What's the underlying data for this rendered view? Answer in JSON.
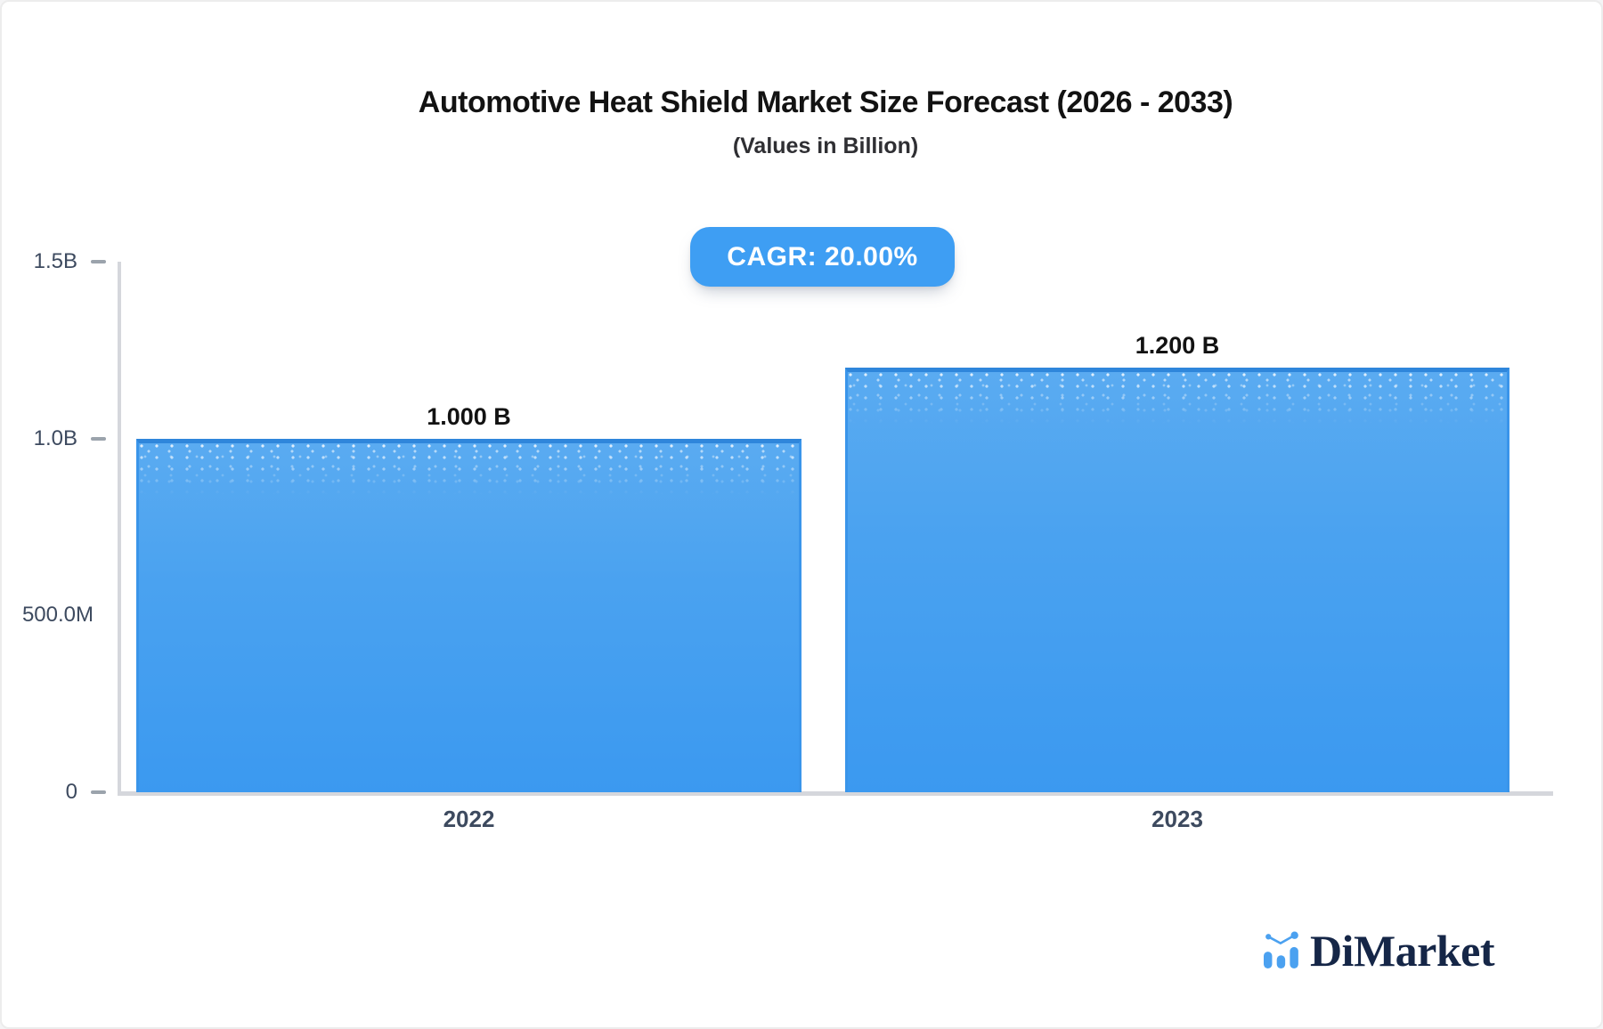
{
  "title": "Automotive Heat Shield Market Size Forecast (2026 - 2033)",
  "subtitle": "(Values in Billion)",
  "cagr_badge": "CAGR: 20.00%",
  "brand": {
    "name": "DiMarket",
    "icon": "bar-chart-logo-icon",
    "navy": "#152647",
    "blue": "#4ba1f0"
  },
  "colors": {
    "badge_blue": "#3e9ef3",
    "bar_top": "#5aabf1",
    "bar_bottom": "#3b99f0",
    "bar_border": "#2f86db",
    "axis_gray": "#d5d7dc",
    "tick_dash_gray": "#9ba3ac",
    "tick_text": "#3d4a5f",
    "label_text": "#121212",
    "background": "#ffffff"
  },
  "chart_data": {
    "type": "bar",
    "categories": [
      "2022",
      "2023"
    ],
    "values": [
      1.0,
      1.2
    ],
    "value_labels": [
      "1.000 B",
      "1.200 B"
    ],
    "title": "Automotive Heat Shield Market Size Forecast (2026 - 2033)",
    "subtitle": "(Values in Billion)",
    "unit": "Billion",
    "xlabel": "",
    "ylabel": "",
    "ylim": [
      0,
      1.5
    ],
    "grid": false,
    "legend": "none",
    "yticks": [
      {
        "label": "1.5B",
        "value": 1.5,
        "dash": true
      },
      {
        "label": "1.0B",
        "value": 1.0,
        "dash": true
      },
      {
        "label": "500.0M",
        "value": 0.5,
        "dash": false
      },
      {
        "label": "0",
        "value": 0.0,
        "dash": true
      }
    ]
  }
}
